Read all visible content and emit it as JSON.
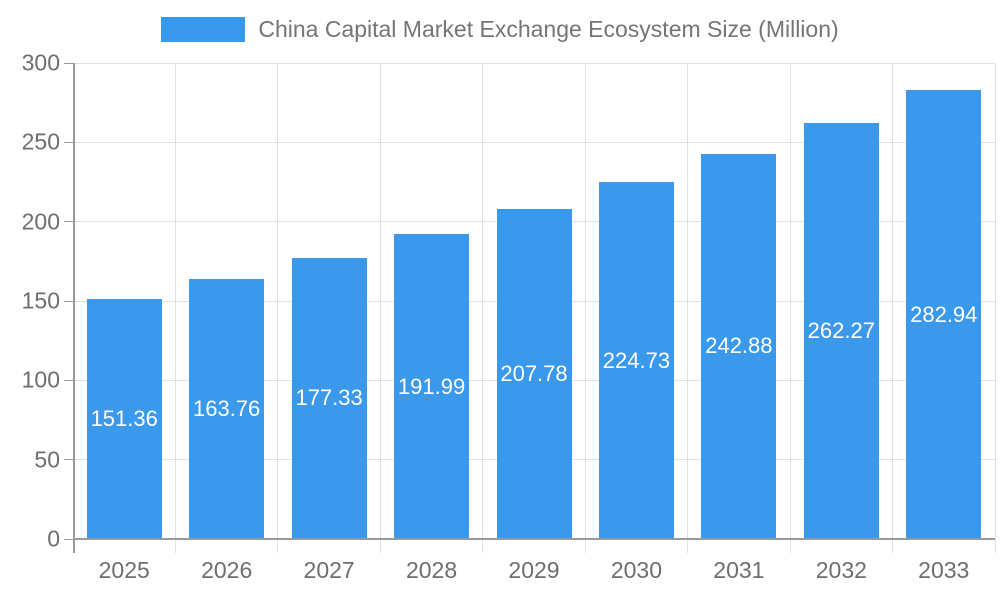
{
  "chart_data": {
    "type": "bar",
    "title": "China Capital Market Exchange Ecosystem Size (Million)",
    "categories": [
      "2025",
      "2026",
      "2027",
      "2028",
      "2029",
      "2030",
      "2031",
      "2032",
      "2033"
    ],
    "values": [
      151.36,
      163.76,
      177.33,
      191.99,
      207.78,
      224.73,
      242.88,
      262.27,
      282.94
    ],
    "xlabel": "",
    "ylabel": "",
    "ylim": [
      0,
      300
    ],
    "ytick_step": 50,
    "ytick_labels": [
      "0",
      "50",
      "100",
      "150",
      "200",
      "250",
      "300"
    ],
    "grid": "horizontal and vertical category boundaries",
    "legend_position": "top-center",
    "value_labels": "centered inside bars, white",
    "colors": {
      "bar": "#3b99ec",
      "axis_line": "#999999",
      "grid_line": "#e2e2e2",
      "axis_text": "#6e6e6e",
      "title_text": "#757575",
      "value_label_text": "#ffffff",
      "background": "#ffffff"
    }
  }
}
